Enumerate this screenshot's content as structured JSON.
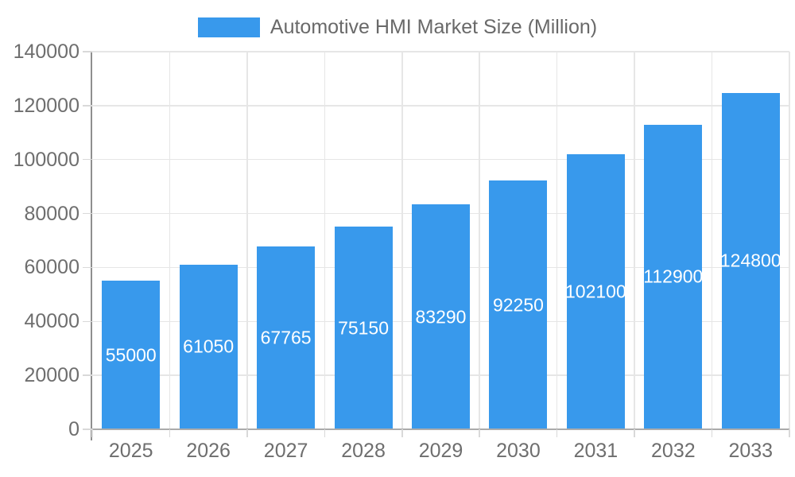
{
  "legend": {
    "label": "Automotive HMI Market Size (Million)"
  },
  "colors": {
    "bar": "#3899ec",
    "grid": "#e6e6e6",
    "tick": "#d9d9d9",
    "x_axis_line": "#ababab",
    "y_axis_line": "#8f8f8f",
    "axis_text": "#6e6e6e",
    "legend_text": "#696969",
    "value_label_text": "#ffffff",
    "background": "#ffffff"
  },
  "chart_data": {
    "type": "bar",
    "title": "Automotive HMI Market Size (Million)",
    "categories": [
      "2025",
      "2026",
      "2027",
      "2028",
      "2029",
      "2030",
      "2031",
      "2032",
      "2033"
    ],
    "values": [
      55000,
      61050,
      67765,
      75150,
      83290,
      92250,
      102100,
      112900,
      124800
    ],
    "bar_labels": [
      55000,
      61050,
      67765,
      75150,
      83290,
      92250,
      102100,
      112900,
      124800
    ],
    "xlabel": "",
    "ylabel": "",
    "ylim": [
      0,
      140000
    ],
    "ytick_step": 20000,
    "ytick_labels": [
      "0",
      "20000",
      "40000",
      "60000",
      "80000",
      "100000",
      "120000",
      "140000"
    ],
    "grid": true,
    "legend_position": "top-center",
    "bar_label_position": "inside-center",
    "series": [
      {
        "name": "Automotive HMI Market Size (Million)",
        "color": "#3899ec",
        "values": [
          55000,
          61050,
          67765,
          75150,
          83290,
          92250,
          102100,
          112900,
          124800
        ]
      }
    ]
  }
}
